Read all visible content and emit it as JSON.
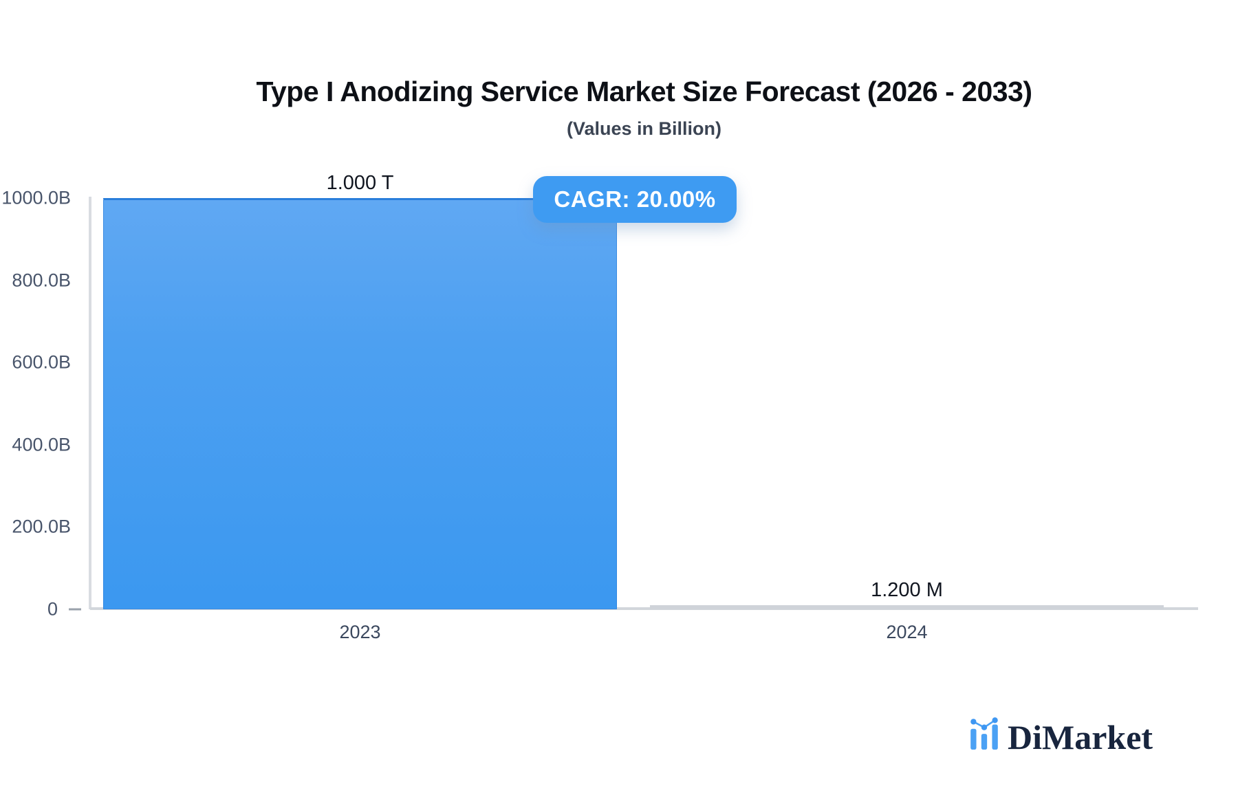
{
  "chart_data": {
    "type": "bar",
    "title": "Type I Anodizing Service Market Size Forecast (2026 - 2033)",
    "subtitle": "(Values in Billion)",
    "unit": "Billion",
    "categories": [
      "2023",
      "2024"
    ],
    "values": [
      1000.0,
      0.0012
    ],
    "value_labels": [
      "1.000 T",
      "1.200 M"
    ],
    "ylim": [
      0,
      1000
    ],
    "yticks": [
      {
        "value": 0,
        "label": "0"
      },
      {
        "value": 200,
        "label": "200.0B"
      },
      {
        "value": 400,
        "label": "400.0B"
      },
      {
        "value": 600,
        "label": "600.0B"
      },
      {
        "value": 800,
        "label": "800.0B"
      },
      {
        "value": 1000,
        "label": "1000.0B"
      }
    ],
    "grid": false,
    "legend": false,
    "bar_colors": [
      "#3e9bf2",
      "#cfd3d9"
    ],
    "annotations": [
      {
        "text": "CAGR: 20.00%"
      }
    ]
  },
  "badge": {
    "cagr_text": "CAGR: 20.00%"
  },
  "branding": {
    "logo_text": "DiMarket",
    "logo_icon": "bar-chart-icon",
    "logo_text_color": "#18253e",
    "logo_icon_color": "#4ba1f4"
  },
  "colors": {
    "accent_blue": "#3e9bf2",
    "bar_gradient_top": "#60a8f3",
    "bar_gradient_bottom": "#3b98f0",
    "bar_border": "#2a7edb",
    "muted_bar_gray": "#cfd3d9",
    "axis_gray": "#d2d6db",
    "tick_text": "#49556b",
    "title_text": "#0d1016"
  }
}
